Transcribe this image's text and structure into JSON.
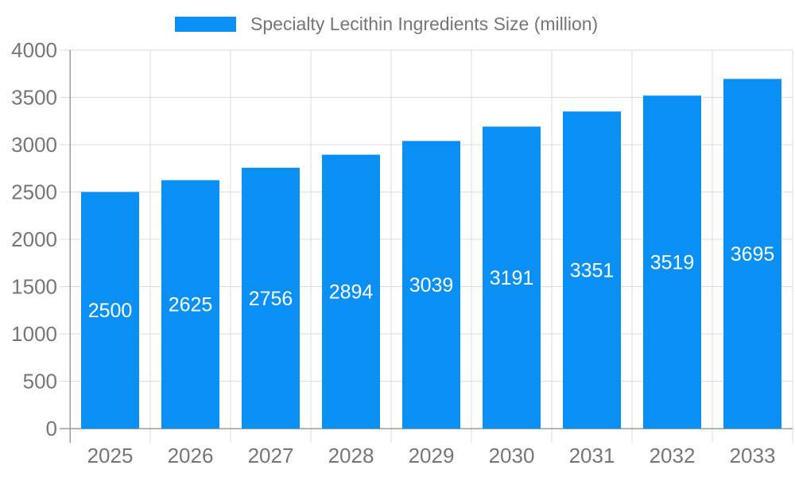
{
  "legend": {
    "label": "Specialty Lecithin Ingredients Size (million)"
  },
  "colors": {
    "bar": "#0A90F5",
    "axis_line": "#9C9C9C",
    "gridline": "#DBDBDB",
    "tick_label": "#767676",
    "bar_value_label": "#FFFFFF",
    "background": "#FFFFFF"
  },
  "chart_data": {
    "type": "bar",
    "title": "Specialty Lecithin Ingredients Size (million)",
    "legend_position": "top",
    "categories": [
      "2025",
      "2026",
      "2027",
      "2028",
      "2029",
      "2030",
      "2031",
      "2032",
      "2033"
    ],
    "values": [
      2500,
      2625,
      2756,
      2894,
      3039,
      3191,
      3351,
      3519,
      3695
    ],
    "series_name": "Specialty Lecithin Ingredients Size (million)",
    "xlabel": "",
    "ylabel": "",
    "ylim": [
      0,
      4000
    ],
    "ytick_step": 500,
    "ytick_labels": [
      "0",
      "500",
      "1000",
      "1500",
      "2000",
      "2500",
      "3000",
      "3500",
      "4000"
    ],
    "grid": true,
    "value_labels": "inside-middle"
  }
}
